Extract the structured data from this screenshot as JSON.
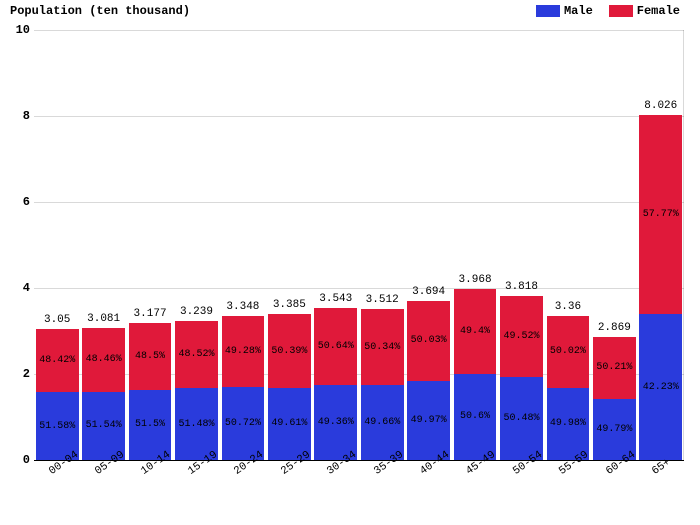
{
  "chart": {
    "type": "stacked-bar",
    "y_title": "Population (ten thousand)",
    "legend": [
      {
        "label": "Male",
        "color": "#2a3bdc"
      },
      {
        "label": "Female",
        "color": "#e0193a"
      }
    ],
    "ylim": [
      0,
      10
    ],
    "yticks": [
      0,
      2,
      4,
      6,
      8,
      10
    ],
    "background_color": "#ffffff",
    "bar_width_ratio": 0.92,
    "label_fontsize": 11,
    "ytitle_fontsize": 12,
    "font_family": "Courier New",
    "categories": [
      "00-04",
      "05-09",
      "10-14",
      "15-19",
      "20-24",
      "25-29",
      "30-34",
      "35-39",
      "40-44",
      "45-49",
      "50-54",
      "55-59",
      "60-64",
      "65+"
    ],
    "totals": [
      3.05,
      3.081,
      3.177,
      3.239,
      3.348,
      3.385,
      3.543,
      3.512,
      3.694,
      3.968,
      3.818,
      3.36,
      2.869,
      8.026
    ],
    "male_pct": [
      51.58,
      51.54,
      51.5,
      51.48,
      50.72,
      49.61,
      49.36,
      49.66,
      49.97,
      50.6,
      50.48,
      49.98,
      49.79,
      42.23
    ],
    "female_pct": [
      48.42,
      48.46,
      48.5,
      48.52,
      49.28,
      50.39,
      50.64,
      50.34,
      50.03,
      49.4,
      49.52,
      50.02,
      50.21,
      57.77
    ],
    "male_color": "#2a3bdc",
    "female_color": "#e0193a",
    "pct_suffix": "%"
  }
}
